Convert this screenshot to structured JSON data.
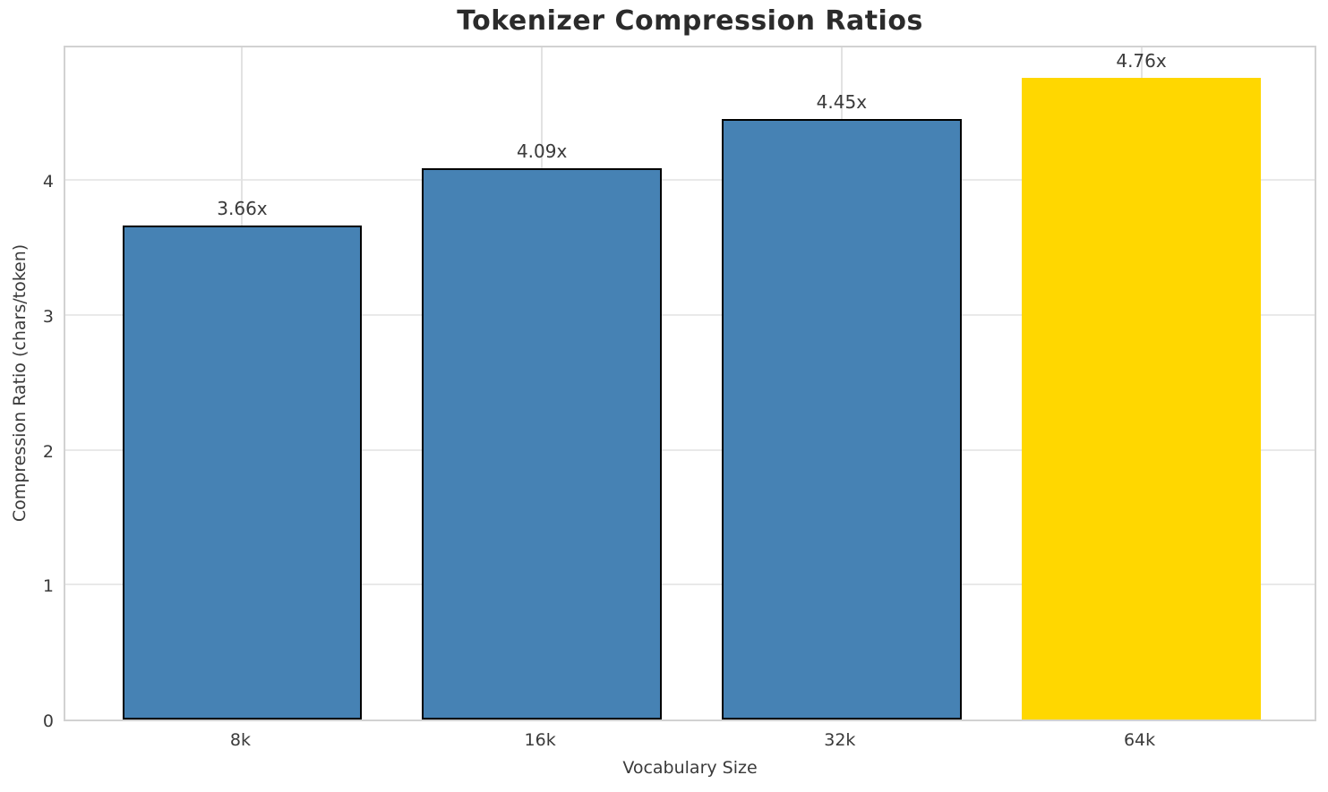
{
  "chart_data": {
    "type": "bar",
    "title": "Tokenizer Compression Ratios",
    "xlabel": "Vocabulary Size",
    "ylabel": "Compression Ratio (chars/token)",
    "categories": [
      "8k",
      "16k",
      "32k",
      "64k"
    ],
    "values": [
      3.66,
      4.09,
      4.45,
      4.76
    ],
    "bar_labels": [
      "3.66x",
      "4.09x",
      "4.45x",
      "4.76x"
    ],
    "bar_colors": [
      "#4682B4",
      "#4682B4",
      "#4682B4",
      "#FFD700"
    ],
    "bar_edge_colors": [
      "#000000",
      "#000000",
      "#000000",
      "none"
    ],
    "yticks": [
      0,
      1,
      2,
      3,
      4
    ],
    "ylim": [
      0,
      5.01
    ],
    "grid": true,
    "legend": "none",
    "colors": {
      "bar_default": "#4682B4",
      "bar_highlight": "#FFD700",
      "grid": "#e9e9e9",
      "spine": "#d2d2d2",
      "text": "#3a3a3a",
      "title_text": "#2b2b2b"
    }
  }
}
